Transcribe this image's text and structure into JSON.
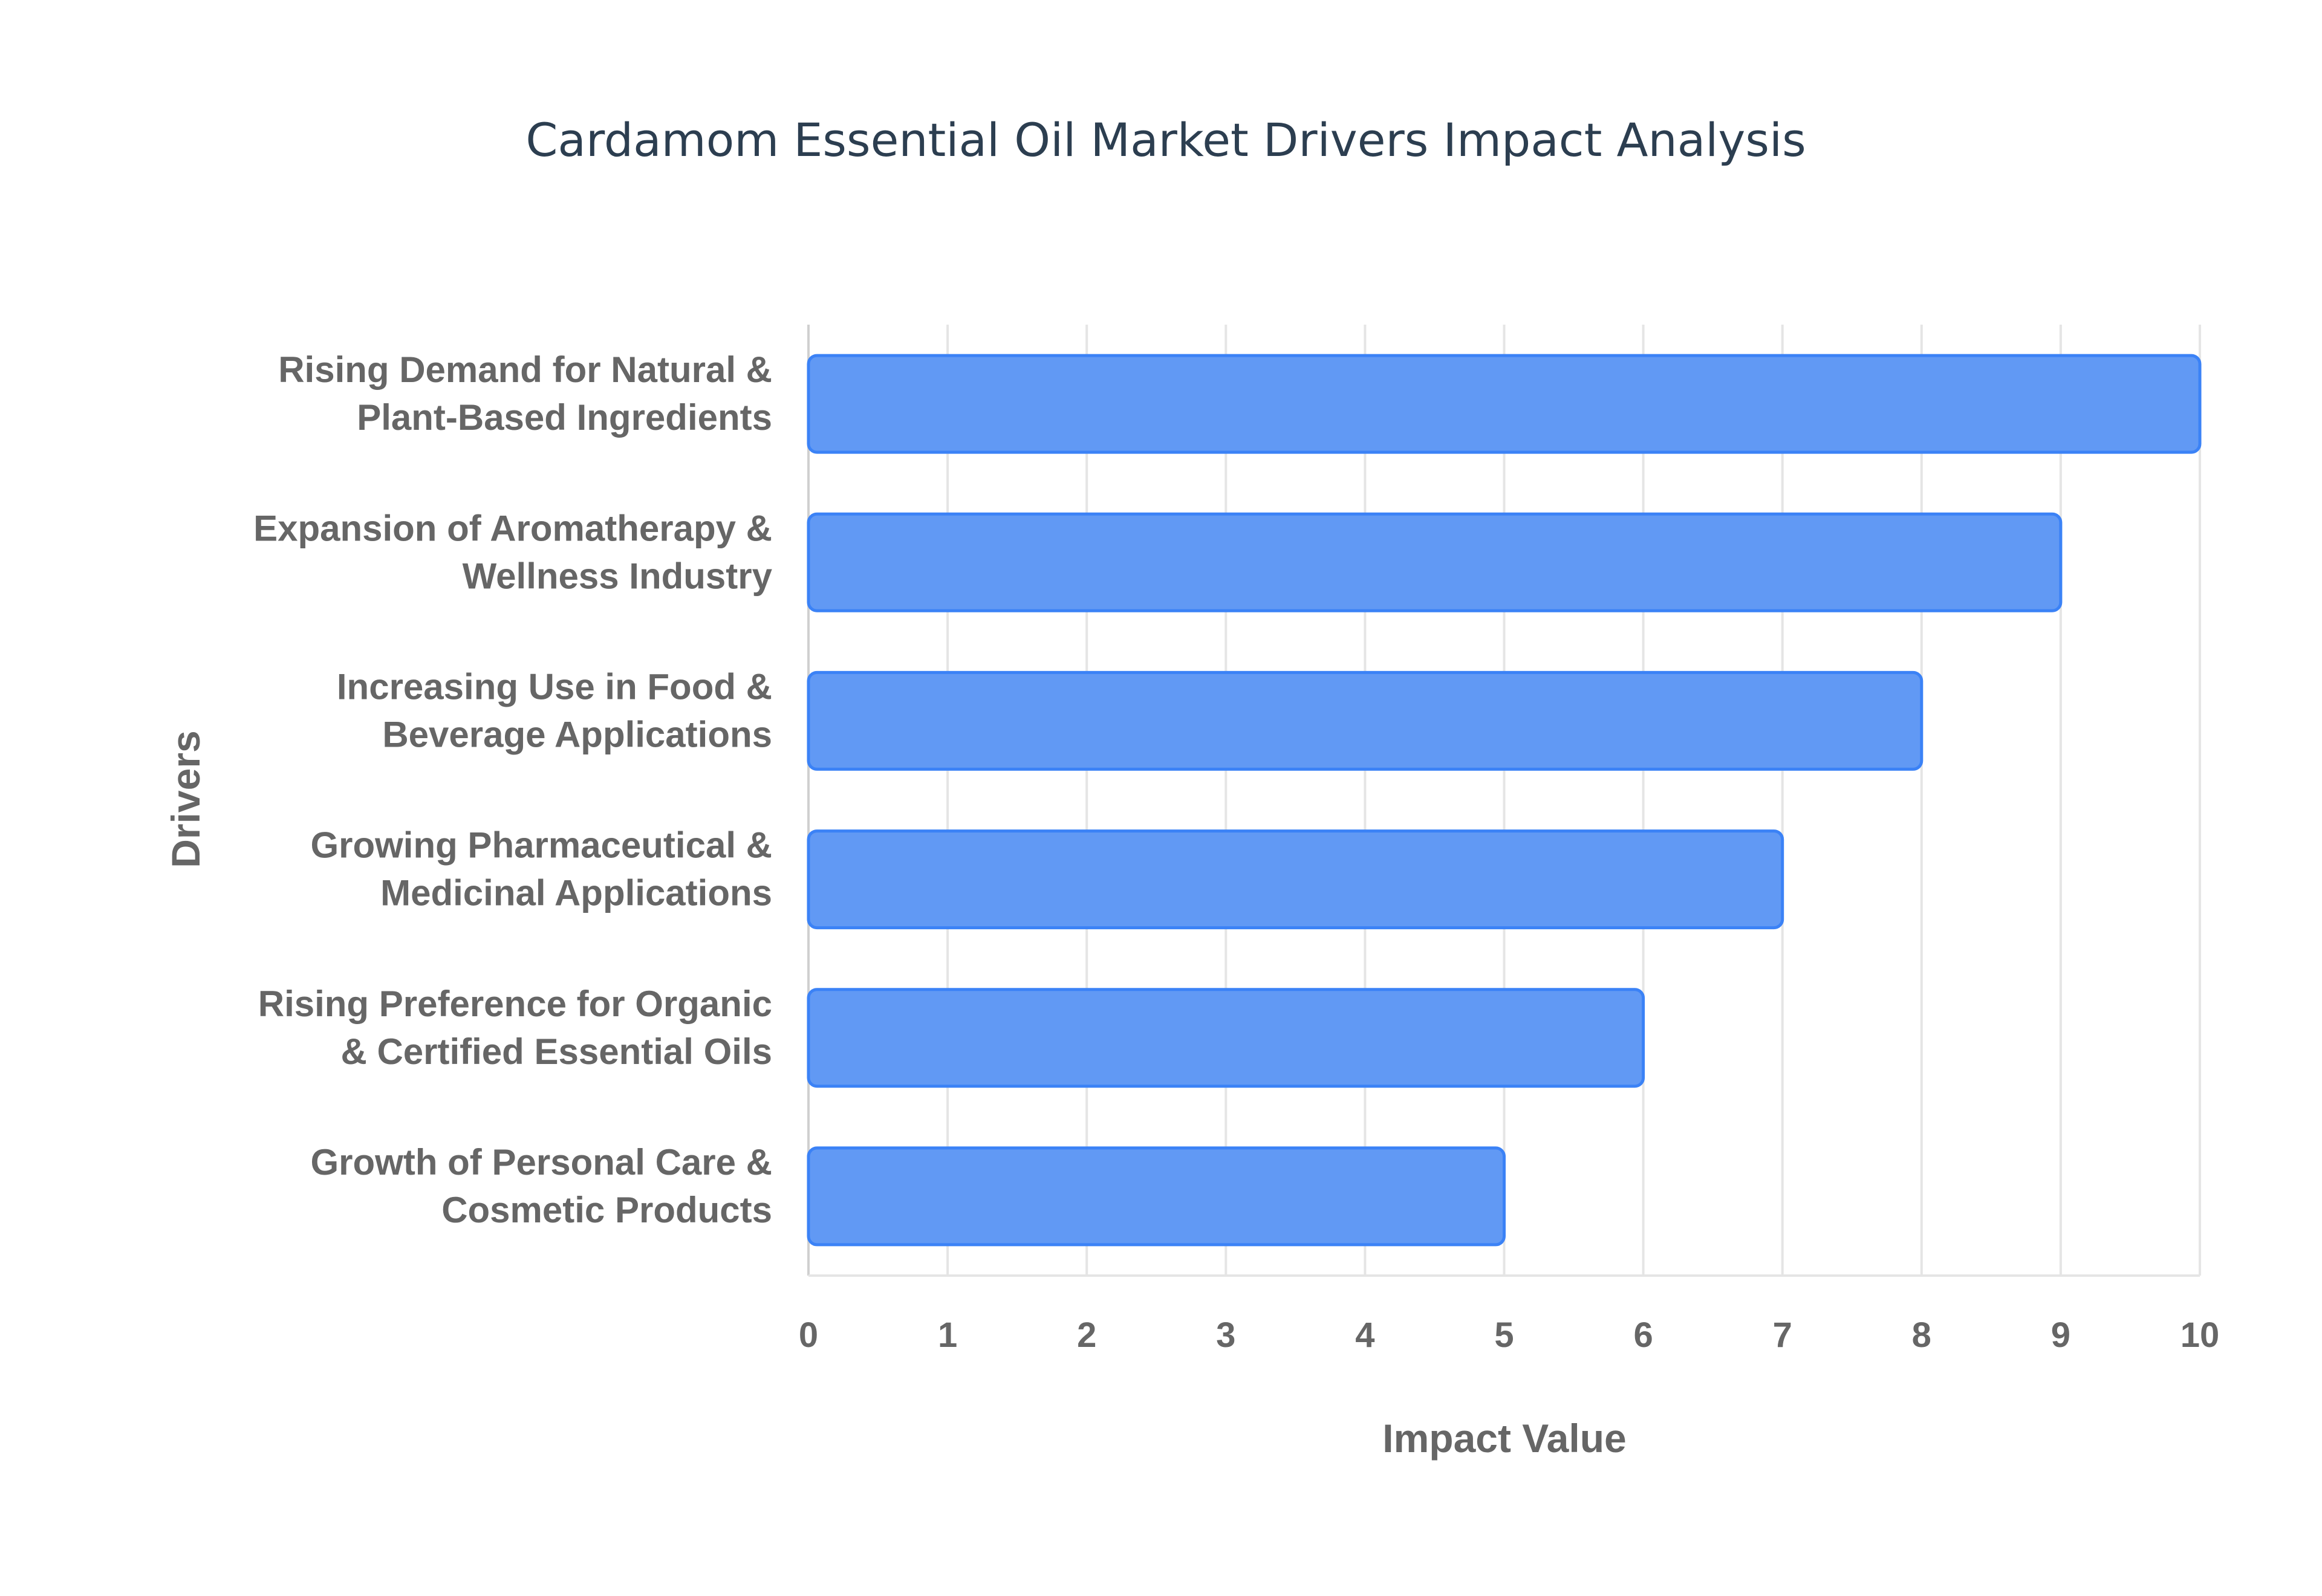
{
  "chart_data": {
    "type": "bar",
    "orientation": "horizontal",
    "title": "Cardamom Essential Oil Market Drivers Impact Analysis",
    "xlabel": "Impact Value",
    "ylabel": "Drivers",
    "xlim": [
      0,
      10
    ],
    "xticks": [
      "0",
      "1",
      "2",
      "3",
      "4",
      "5",
      "6",
      "7",
      "8",
      "9",
      "10"
    ],
    "grid": true,
    "legend": "none",
    "categories": [
      [
        "Rising Demand for Natural &",
        "Plant-Based Ingredients"
      ],
      [
        "Expansion of Aromatherapy &",
        "Wellness Industry"
      ],
      [
        "Increasing Use in Food &",
        "Beverage Applications"
      ],
      [
        "Growing Pharmaceutical &",
        "Medicinal Applications"
      ],
      [
        "Rising Preference for Organic",
        "& Certified Essential Oils"
      ],
      [
        "Growth of Personal Care &",
        "Cosmetic Products"
      ]
    ],
    "values": [
      10,
      9,
      8,
      7,
      6,
      5
    ],
    "colors": {
      "bar_fill": "#6199F4",
      "bar_border": "#3B82F6",
      "grid": "#e5e5e5",
      "text": "#666666",
      "title": "#2c3e50"
    }
  }
}
